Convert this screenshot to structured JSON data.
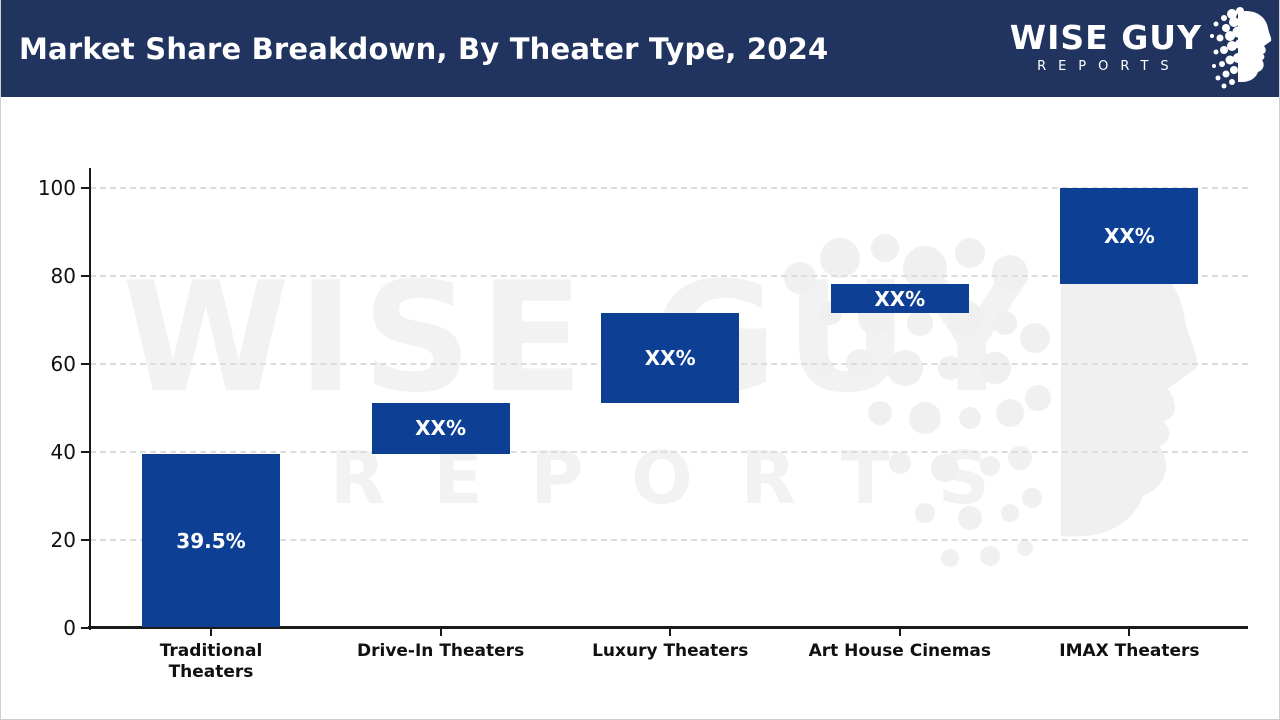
{
  "header": {
    "title": "Market Share Breakdown, By Theater Type, 2024",
    "logo": {
      "line1": "WISE GUY",
      "line2": "REPORTS"
    }
  },
  "watermark": {
    "line1": "WISE GUY",
    "line2": "REPORTS"
  },
  "colors": {
    "header_bg": "#21345f",
    "bar": "#0d4094",
    "grid": "#dcdcdc",
    "axis": "#1a1a1a",
    "watermark": "#f2f2f2"
  },
  "chart_data": {
    "type": "bar",
    "subtype": "waterfall",
    "title": "Market Share Breakdown, By Theater Type, 2024",
    "xlabel": "",
    "ylabel": "",
    "ylim": [
      0,
      100
    ],
    "yticks": [
      0,
      20,
      40,
      60,
      80,
      100
    ],
    "grid": true,
    "legend": false,
    "categories": [
      "Traditional Theaters",
      "Drive-In Theaters",
      "Luxury Theaters",
      "Art House Cinemas",
      "IMAX Theaters"
    ],
    "tick_label_lines": [
      [
        "Traditional",
        "Theaters"
      ],
      [
        "Drive-In Theaters"
      ],
      [
        "Luxury Theaters"
      ],
      [
        "Art House Cinemas"
      ],
      [
        "IMAX Theaters"
      ]
    ],
    "bars": [
      {
        "category": "Traditional Theaters",
        "start": 0,
        "end": 39.5,
        "label": "39.5%"
      },
      {
        "category": "Drive-In Theaters",
        "start": 39.5,
        "end": 51,
        "label": "XX%"
      },
      {
        "category": "Luxury Theaters",
        "start": 51,
        "end": 71.5,
        "label": "XX%"
      },
      {
        "category": "Art House Cinemas",
        "start": 71.5,
        "end": 78,
        "label": "XX%"
      },
      {
        "category": "IMAX Theaters",
        "start": 78,
        "end": 100,
        "label": "XX%"
      }
    ]
  }
}
